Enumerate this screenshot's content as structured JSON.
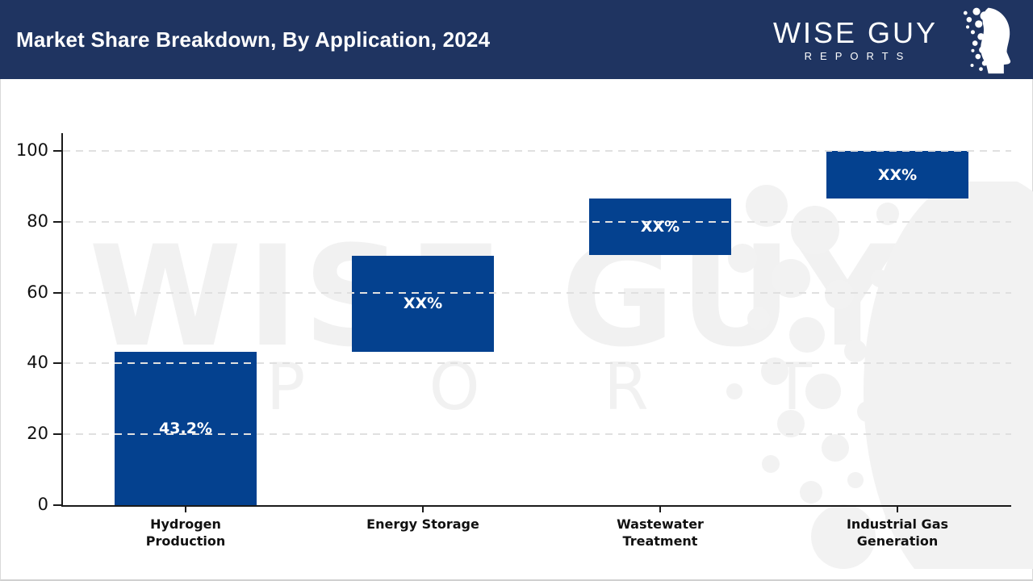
{
  "header": {
    "title": "Market Share Breakdown, By Application, 2024",
    "logo": {
      "line1": "WISE GUY",
      "line2": "REPORTS"
    }
  },
  "watermark": {
    "line1": "WISE GUY",
    "line2": "P O R T S"
  },
  "colors": {
    "header_bg": "#1f3461",
    "bar": "#04418f",
    "bar_label": "#ffffff",
    "grid": "#e0e0e0",
    "axis": "#1a1a1a",
    "watermark": "#f1f1f1"
  },
  "chart_data": {
    "type": "bar",
    "subtype": "waterfall",
    "title": "Market Share Breakdown, By Application, 2024",
    "categories": [
      "Hydrogen\nProduction",
      "Energy Storage",
      "Wastewater\nTreatment",
      "Industrial Gas\nGeneration"
    ],
    "bars": [
      {
        "category": "Hydrogen\nProduction",
        "start": 0,
        "end": 43.2,
        "label": "43.2%"
      },
      {
        "category": "Energy Storage",
        "start": 43.2,
        "end": 70.5,
        "label": "XX%"
      },
      {
        "category": "Wastewater\nTreatment",
        "start": 70.5,
        "end": 86.5,
        "label": "XX%"
      },
      {
        "category": "Industrial Gas\nGeneration",
        "start": 86.5,
        "end": 100,
        "label": "XX%"
      }
    ],
    "yticks": [
      0,
      20,
      40,
      60,
      80,
      100
    ],
    "ylim": [
      0,
      105
    ],
    "xlabel": "",
    "ylabel": "",
    "grid": "horizontal-dashed-above-bars",
    "legend": "none",
    "bar_color": "#04418f"
  }
}
